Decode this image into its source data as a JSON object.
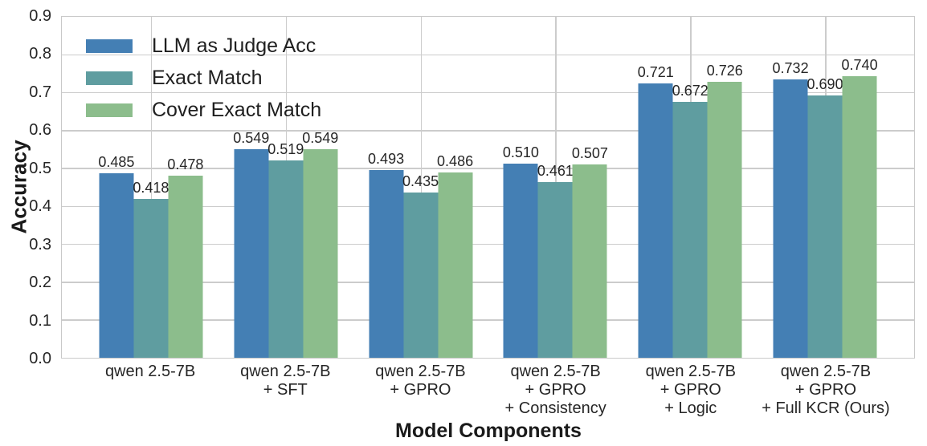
{
  "chart_data": {
    "type": "bar",
    "title": "",
    "xlabel": "Model Components",
    "ylabel": "Accuracy",
    "ylim": [
      0.0,
      0.9
    ],
    "yticks": [
      "0.0",
      "0.1",
      "0.2",
      "0.3",
      "0.4",
      "0.5",
      "0.6",
      "0.7",
      "0.8",
      "0.9"
    ],
    "grid": true,
    "legend_position": "upper-left",
    "categories": [
      "qwen 2.5-7B",
      "qwen 2.5-7B\n+ SFT",
      "qwen 2.5-7B\n+ GPRO",
      "qwen 2.5-7B\n+ GPRO\n+ Consistency",
      "qwen 2.5-7B\n+ GPRO\n+ Logic",
      "qwen 2.5-7B\n+ GPRO\n+ Full KCR (Ours)"
    ],
    "series": [
      {
        "name": "LLM as Judge Acc",
        "color": "#447fb4",
        "values": [
          0.485,
          0.549,
          0.493,
          0.51,
          0.721,
          0.732
        ],
        "labels": [
          "0.485",
          "0.549",
          "0.493",
          "0.510",
          "0.721",
          "0.732"
        ]
      },
      {
        "name": "Exact Match",
        "color": "#5f9da0",
        "values": [
          0.418,
          0.519,
          0.435,
          0.461,
          0.672,
          0.69
        ],
        "labels": [
          "0.418",
          "0.519",
          "0.435",
          "0.461",
          "0.672",
          "0.690"
        ]
      },
      {
        "name": "Cover Exact Match",
        "color": "#8cbd8c",
        "values": [
          0.478,
          0.549,
          0.486,
          0.507,
          0.726,
          0.74
        ],
        "labels": [
          "0.478",
          "0.549",
          "0.486",
          "0.507",
          "0.726",
          "0.740"
        ]
      }
    ]
  },
  "style": {
    "grid_color": "#cccccc",
    "spine_color": "#c9c9c9",
    "text_color": "#262626",
    "background": "#ffffff"
  }
}
